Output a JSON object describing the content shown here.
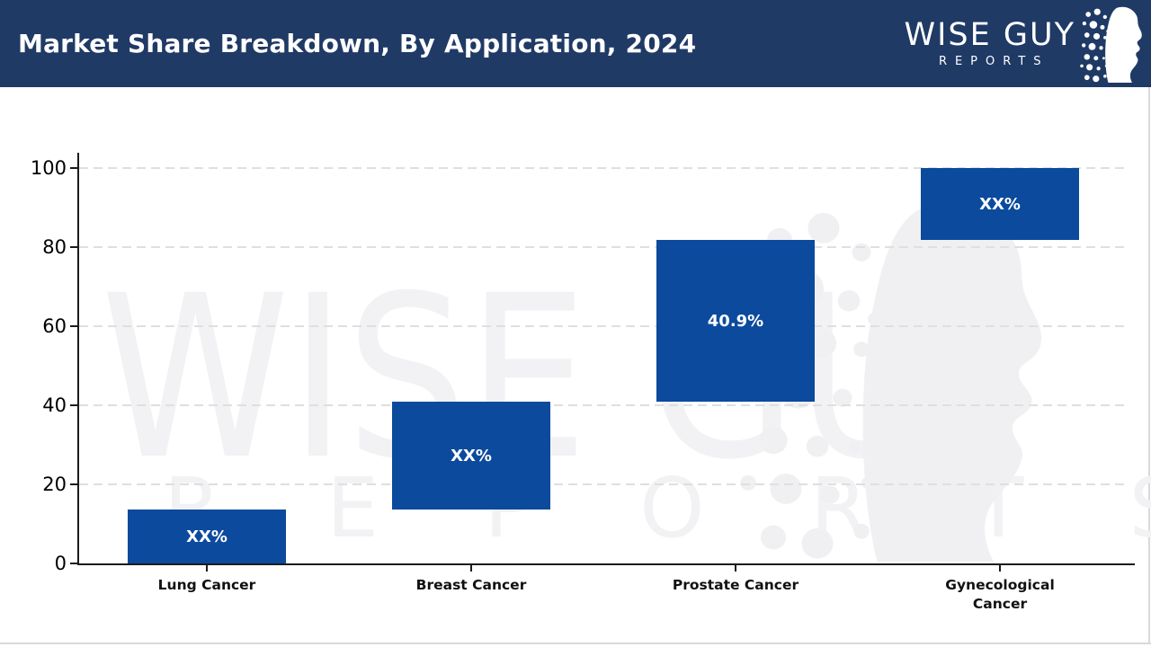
{
  "header": {
    "title": "Market Share Breakdown, By Application, 2024",
    "background_color": "#203a66",
    "logo": {
      "line1": "WISE GUY",
      "line2": "REPORTS"
    }
  },
  "watermark": {
    "line1": "WISE GU",
    "line2": "REPORTS"
  },
  "chart_data": {
    "type": "bar",
    "subtype": "waterfall",
    "title": "Market Share Breakdown, By Application, 2024",
    "categories": [
      "Lung Cancer",
      "Breast Cancer",
      "Prostate Cancer",
      "Gynecological Cancer"
    ],
    "bars": [
      {
        "category": "Lung Cancer",
        "tick_label": "Lung Cancer",
        "start": 0,
        "end": 13.6,
        "value": 13.6,
        "label": "XX%"
      },
      {
        "category": "Breast Cancer",
        "tick_label": "Breast Cancer",
        "start": 13.6,
        "end": 40.9,
        "value": 27.3,
        "label": "XX%"
      },
      {
        "category": "Prostate Cancer",
        "tick_label": "Prostate Cancer",
        "start": 40.9,
        "end": 81.8,
        "value": 40.9,
        "label": "40.9%"
      },
      {
        "category": "Gynecological Cancer",
        "tick_label": "Gynecological\nCancer",
        "start": 81.8,
        "end": 100,
        "value": 18.2,
        "label": "XX%"
      }
    ],
    "bar_color": "#0c4a9d",
    "ylim": [
      0,
      100
    ],
    "yticks": [
      0,
      20,
      40,
      60,
      80,
      100
    ],
    "xlabel": "",
    "ylabel": "",
    "grid": "horizontal-dashed",
    "grid_color": "#dfdfdf",
    "legend": "none"
  }
}
